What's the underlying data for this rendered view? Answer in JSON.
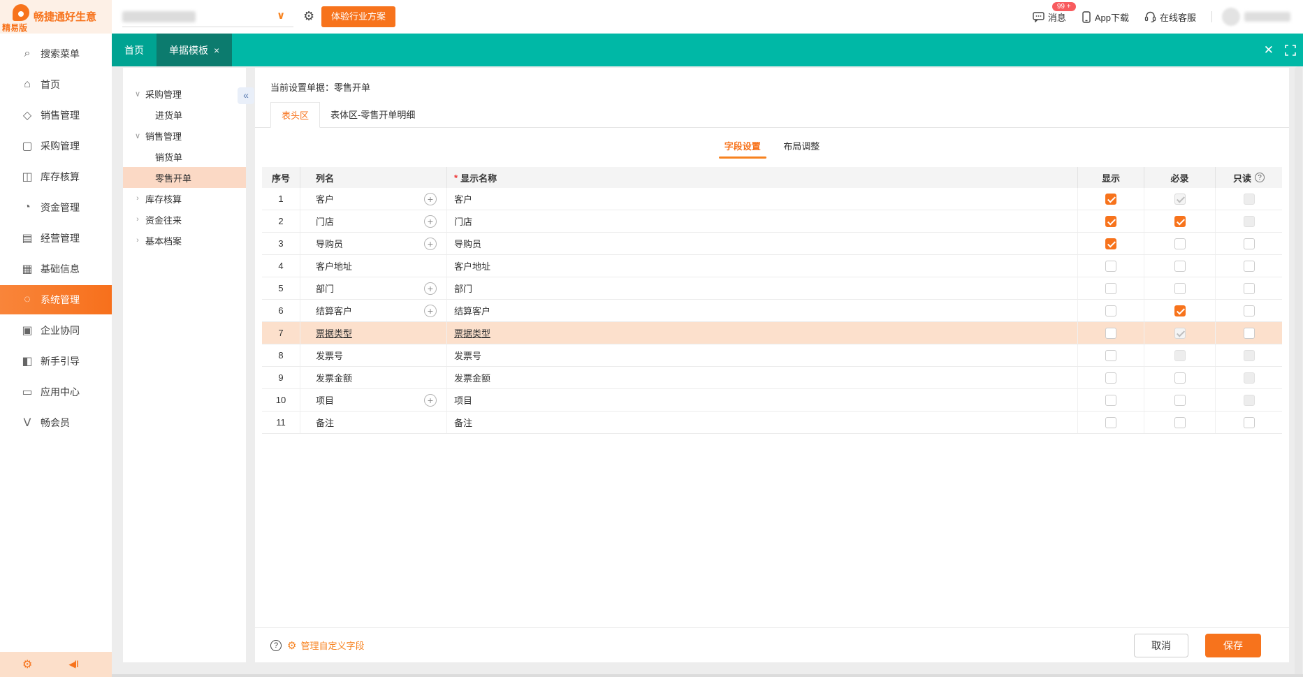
{
  "brand": {
    "name": "畅捷通好生意",
    "edition": "精易版"
  },
  "topbar": {
    "experience_button": "体验行业方案",
    "messages": "消息",
    "messages_badge": "99 +",
    "app_download": "App下载",
    "support": "在线客服"
  },
  "tabbar": {
    "tabs": [
      {
        "label": "首页"
      },
      {
        "label": "单据模板",
        "closable": true
      }
    ]
  },
  "sidebar": {
    "items": [
      {
        "label": "搜索菜单",
        "icon": "search"
      },
      {
        "label": "首页",
        "icon": "home"
      },
      {
        "label": "销售管理",
        "icon": "sales"
      },
      {
        "label": "采购管理",
        "icon": "purchase"
      },
      {
        "label": "库存核算",
        "icon": "inventory"
      },
      {
        "label": "资金管理",
        "icon": "funds"
      },
      {
        "label": "经营管理",
        "icon": "business"
      },
      {
        "label": "基础信息",
        "icon": "base-info"
      },
      {
        "label": "系统管理",
        "icon": "system",
        "active": true
      },
      {
        "label": "企业协同",
        "icon": "collaboration"
      },
      {
        "label": "新手引导",
        "icon": "guide"
      },
      {
        "label": "应用中心",
        "icon": "app-center"
      },
      {
        "label": "畅会员",
        "icon": "member"
      }
    ]
  },
  "tree": {
    "collapse_glyph": "«",
    "items": [
      {
        "label": "采购管理",
        "level": 1,
        "state": "expanded"
      },
      {
        "label": "进货单",
        "level": 2
      },
      {
        "label": "销售管理",
        "level": 1,
        "state": "expanded"
      },
      {
        "label": "销货单",
        "level": 2
      },
      {
        "label": "零售开单",
        "level": 2,
        "selected": true
      },
      {
        "label": "库存核算",
        "level": 1,
        "state": "collapsed"
      },
      {
        "label": "资金往来",
        "level": 1,
        "state": "collapsed"
      },
      {
        "label": "基本档案",
        "level": 1,
        "state": "collapsed"
      }
    ]
  },
  "main": {
    "current_doc_label": "当前设置单据：",
    "current_doc_value": "零售开单",
    "region_tabs": [
      {
        "label": "表头区",
        "active": true
      },
      {
        "label": "表体区-零售开单明细"
      }
    ],
    "setting_tabs": [
      {
        "label": "字段设置",
        "active": true
      },
      {
        "label": "布局调整"
      }
    ],
    "table": {
      "headers": {
        "no": "序号",
        "col": "列名",
        "display": "显示名称",
        "show": "显示",
        "required": "必录",
        "readonly": "只读"
      },
      "required_marker": "*",
      "readonly_help": "?",
      "rows": [
        {
          "no": "1",
          "col": "客户",
          "add": true,
          "display": "客户",
          "show": "on",
          "required": "on-disabled",
          "readonly": "off-disabled"
        },
        {
          "no": "2",
          "col": "门店",
          "add": true,
          "display": "门店",
          "show": "on",
          "required": "on",
          "readonly": "off-disabled"
        },
        {
          "no": "3",
          "col": "导购员",
          "add": true,
          "display": "导购员",
          "show": "on",
          "required": "off",
          "readonly": "off"
        },
        {
          "no": "4",
          "col": "客户地址",
          "add": false,
          "display": "客户地址",
          "show": "off",
          "required": "off",
          "readonly": "off"
        },
        {
          "no": "5",
          "col": "部门",
          "add": true,
          "display": "部门",
          "show": "off",
          "required": "off",
          "readonly": "off"
        },
        {
          "no": "6",
          "col": "结算客户",
          "add": true,
          "display": "结算客户",
          "show": "off",
          "required": "on",
          "readonly": "off"
        },
        {
          "no": "7",
          "col": "票据类型",
          "add": false,
          "display": "票据类型",
          "show": "off",
          "required": "on-disabled",
          "readonly": "off",
          "highlighted": true
        },
        {
          "no": "8",
          "col": "发票号",
          "add": false,
          "display": "发票号",
          "show": "off",
          "required": "off-disabled",
          "readonly": "off-disabled"
        },
        {
          "no": "9",
          "col": "发票金额",
          "add": false,
          "display": "发票金额",
          "show": "off",
          "required": "off",
          "readonly": "off-disabled"
        },
        {
          "no": "10",
          "col": "项目",
          "add": true,
          "display": "项目",
          "show": "off",
          "required": "off",
          "readonly": "off-disabled"
        },
        {
          "no": "11",
          "col": "备注",
          "add": false,
          "display": "备注",
          "show": "off",
          "required": "off",
          "readonly": "off"
        }
      ]
    },
    "footer": {
      "manage_link": "管理自定义字段",
      "cancel": "取消",
      "save": "保存"
    }
  },
  "colors": {
    "accent": "#f7731c",
    "teal_bar": "#00b8a6",
    "teal_tab_active": "#0c7b6e",
    "badge": "#f85b5e",
    "row_highlight": "#fce0cc",
    "tree_selected": "#fbd9c5"
  }
}
